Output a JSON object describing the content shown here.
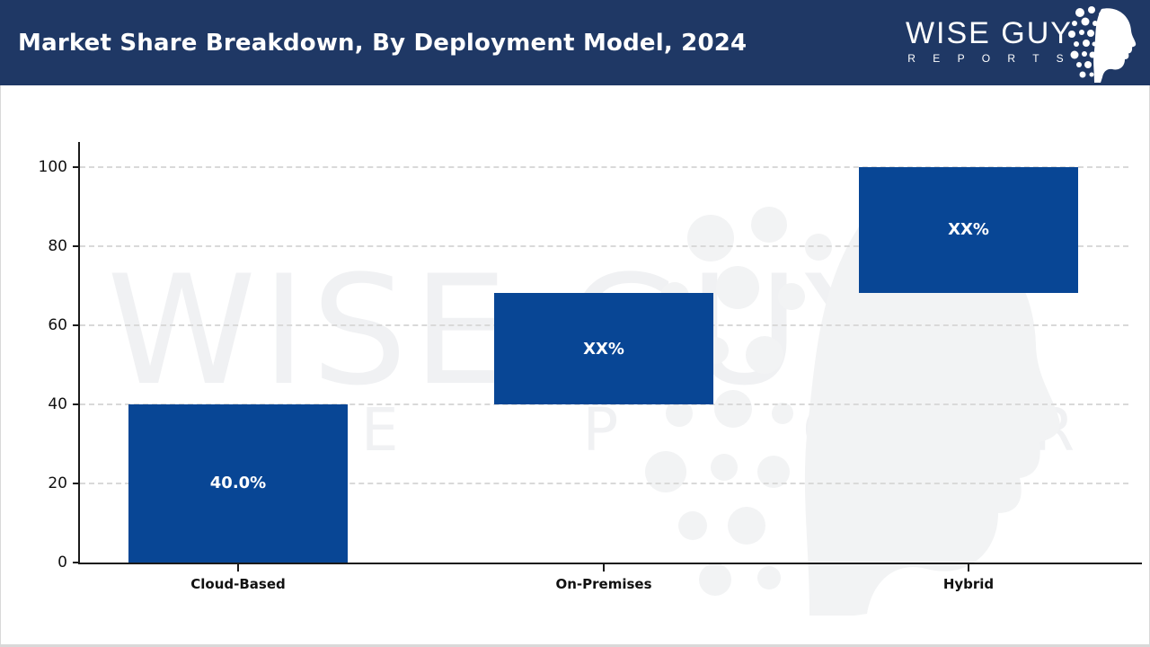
{
  "header": {
    "title": "Market Share Breakdown, By Deployment Model, 2024",
    "bg_color": "#1f3865",
    "logo": {
      "brand_line1": "WISE GUY",
      "brand_line2": "R E P O R T S"
    }
  },
  "watermark": {
    "line1": "WISE GUY",
    "line2": "R E P O R T S"
  },
  "chart_data": {
    "type": "bar",
    "subtype": "floating-waterfall-segments",
    "title": "Market Share Breakdown, By Deployment Model, 2024",
    "categories": [
      "Cloud-Based",
      "On-Premises",
      "Hybrid"
    ],
    "segments": [
      {
        "category": "Cloud-Based",
        "start": 0,
        "end": 40,
        "label": "40.0%"
      },
      {
        "category": "On-Premises",
        "start": 40,
        "end": 68,
        "label": "XX%"
      },
      {
        "category": "Hybrid",
        "start": 68,
        "end": 100,
        "label": "XX%"
      }
    ],
    "yticks": [
      0,
      20,
      40,
      60,
      80,
      100
    ],
    "ylim": [
      0,
      105
    ],
    "xlabel": "",
    "ylabel": "",
    "grid": "horizontal-dashed",
    "legend": "none",
    "bar_color": "#084695",
    "bar_label_color": "#ffffff",
    "axis_color": "#1a1a1a",
    "grid_color": "#d9d9d9"
  }
}
